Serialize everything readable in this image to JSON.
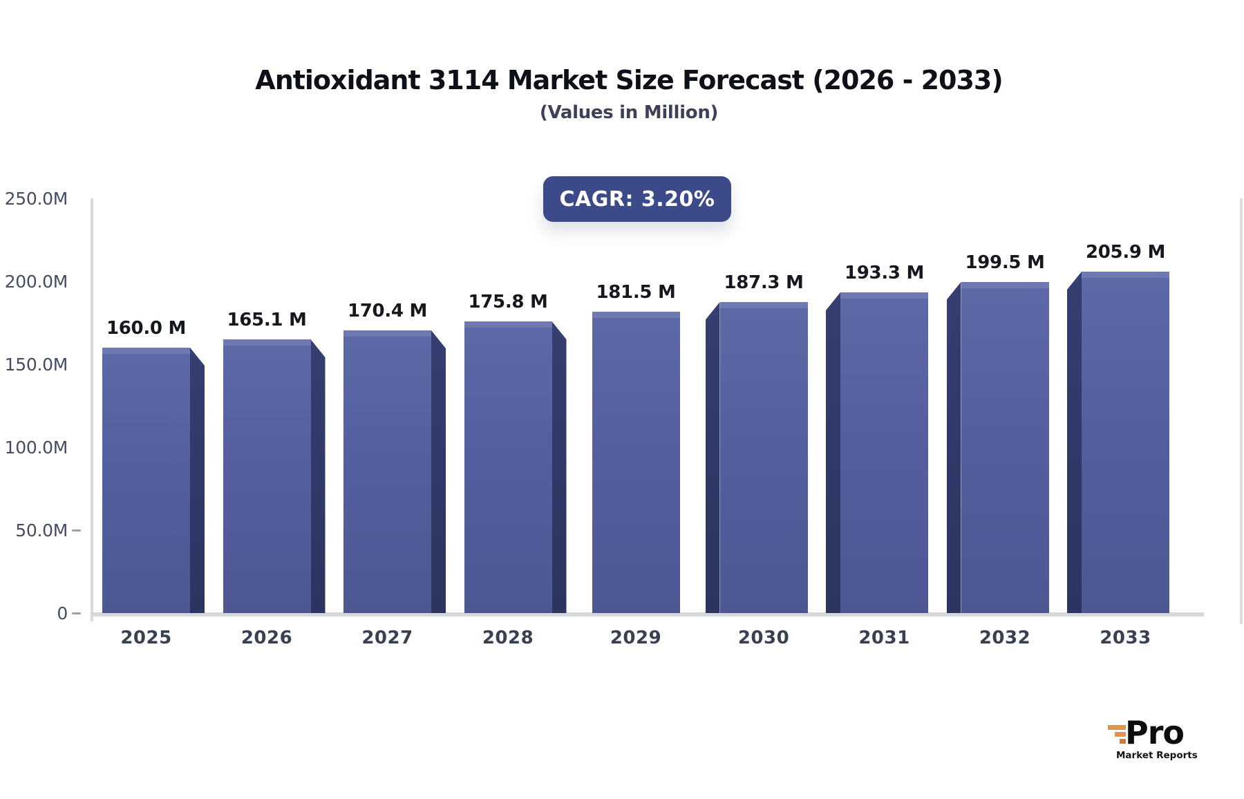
{
  "header": {
    "title": "Antioxidant 3114 Market Size Forecast (2026 - 2033)",
    "subtitle": "(Values in Million)",
    "cagr_badge": "CAGR: 3.20%"
  },
  "logo": {
    "name": "Pro",
    "subtitle": "Market Reports"
  },
  "colors": {
    "badge_bg": "#3c4a8a",
    "bar_body_top": "#5e69a7",
    "bar_body_bottom": "#4d5792",
    "bar_cap": "#6f7ab3",
    "bar_side": "#2c355f",
    "axis_line": "#d9dade",
    "logo_orange": "#df954e"
  },
  "chart_data": {
    "type": "bar",
    "title": "Antioxidant 3114 Market Size Forecast (2026 - 2033)",
    "subtitle": "(Values in Million)",
    "cagr": "3.20%",
    "categories": [
      "2025",
      "2026",
      "2027",
      "2028",
      "2029",
      "2030",
      "2031",
      "2032",
      "2033"
    ],
    "values": [
      160.0,
      165.1,
      170.4,
      175.8,
      181.5,
      187.3,
      193.3,
      199.5,
      205.9
    ],
    "value_labels": [
      "160.0 M",
      "165.1 M",
      "170.4 M",
      "175.8 M",
      "181.5 M",
      "187.3 M",
      "193.3 M",
      "199.5 M",
      "205.9 M"
    ],
    "unit": "Million",
    "xlabel": "",
    "ylabel": "",
    "ylim": [
      0,
      250
    ],
    "grid": false,
    "legend": false,
    "yticks": [
      {
        "label": "250.0M",
        "value": 250,
        "dash": false
      },
      {
        "label": "200.0M",
        "value": 200,
        "dash": false
      },
      {
        "label": "150.0M",
        "value": 150,
        "dash": false
      },
      {
        "label": "100.0M",
        "value": 100,
        "dash": false
      },
      {
        "label": "50.0M",
        "value": 50,
        "dash": true
      },
      {
        "label": "0",
        "value": 0,
        "dash": true
      }
    ]
  }
}
